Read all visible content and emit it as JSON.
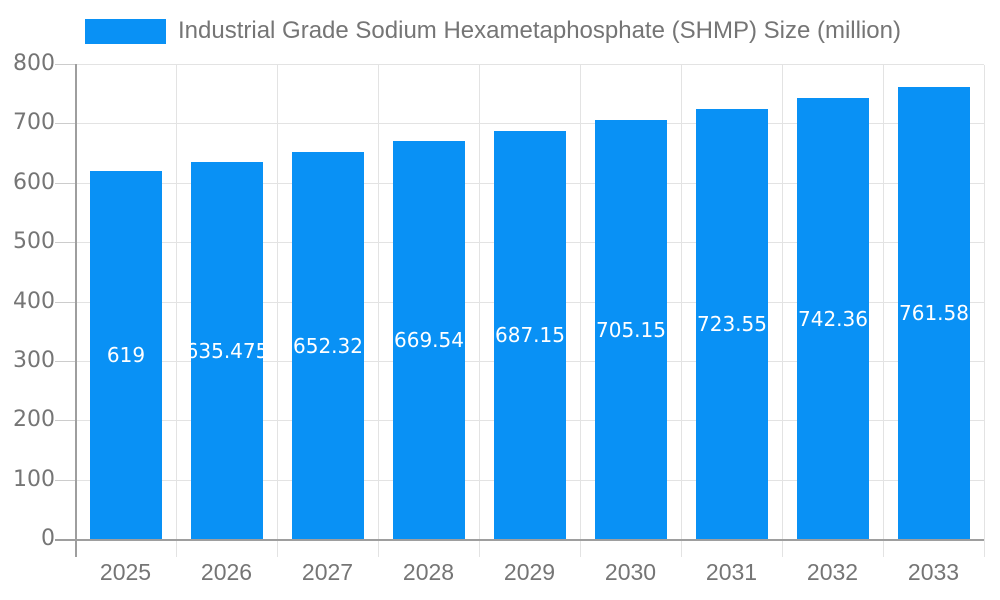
{
  "legend": {
    "label": "Industrial Grade Sodium Hexametaphosphate (SHMP) Size (million)"
  },
  "chart_data": {
    "type": "bar",
    "title": "Industrial Grade Sodium Hexametaphosphate (SHMP) Size (million)",
    "categories": [
      "2025",
      "2026",
      "2027",
      "2028",
      "2029",
      "2030",
      "2031",
      "2032",
      "2033"
    ],
    "values": [
      619,
      635.475,
      652.32,
      669.54,
      687.15,
      705.15,
      723.55,
      742.36,
      761.58
    ],
    "bar_labels": [
      "619",
      "635.475",
      "652.32",
      "669.54",
      "687.15",
      "705.15",
      "723.55",
      "742.36",
      "761.58"
    ],
    "xlabel": "",
    "ylabel": "",
    "ylim": [
      0,
      800
    ],
    "yticks": [
      0,
      100,
      200,
      300,
      400,
      500,
      600,
      700,
      800
    ],
    "grid": true,
    "legend_position": "top"
  },
  "colors": {
    "bar": "#0991f5",
    "axis_text": "#757575",
    "grid_line": "#e3e3e3",
    "axis_line": "#9e9e9e",
    "tick_mark": "#cccccc",
    "bar_label_text": "#ffffff",
    "background": "#ffffff"
  }
}
